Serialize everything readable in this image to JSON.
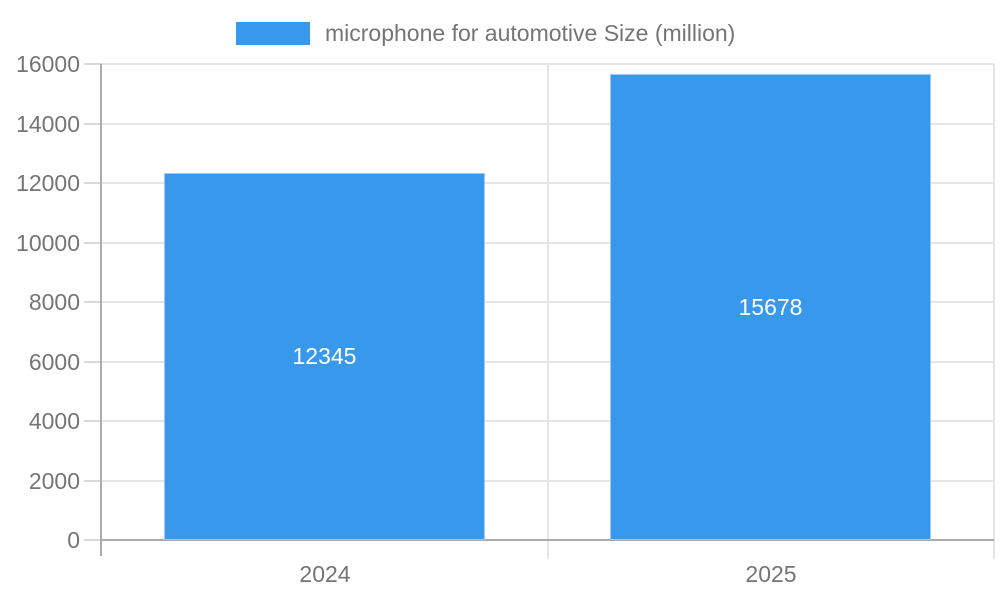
{
  "legend": {
    "label": "microphone for automotive Size (million)"
  },
  "colors": {
    "background": "#ffffff",
    "bar": "#3899ec",
    "bar_border": "#9fc8f3",
    "axis": "#ababab",
    "grid": "#e5e5e5",
    "tick": "#d8d8d8",
    "label": "#757575",
    "value_label": "#ffffff"
  },
  "chart_data": {
    "type": "bar",
    "title": "",
    "categories": [
      "2024",
      "2025"
    ],
    "series": [
      {
        "name": "microphone for automotive Size (million)",
        "values": [
          12345,
          15678
        ]
      }
    ],
    "data_labels": [
      "12345",
      "15678"
    ],
    "xlabel": "",
    "ylabel": "",
    "ylim": [
      0,
      16000
    ],
    "ytick_step": 2000,
    "yticks": [
      0,
      2000,
      4000,
      6000,
      8000,
      10000,
      12000,
      14000,
      16000
    ],
    "grid": "horizontal",
    "legend_position": "top-center"
  }
}
